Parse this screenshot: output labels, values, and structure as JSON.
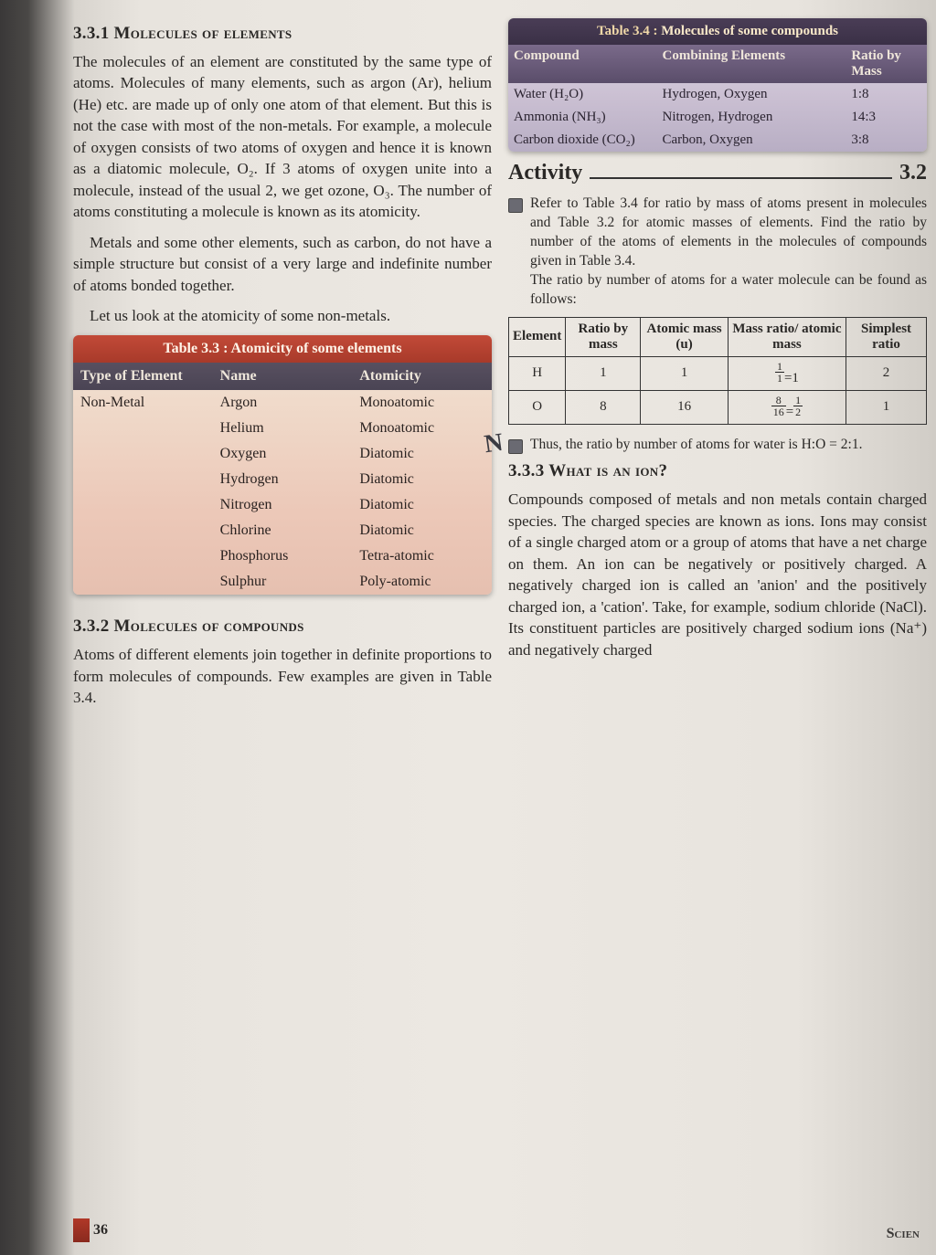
{
  "section_331_title": "3.3.1 Molecules of elements",
  "section_332_title": "3.3.2 Molecules of compounds",
  "section_333_title": "3.3.3 What is an ion?",
  "para1": "The molecules of an element are constituted by the same type of atoms. Molecules of many elements, such as argon (Ar), helium (He) etc. are made up of only one atom of that element. But this is not the case with most of the non-metals. For example, a molecule of oxygen consists of two atoms of oxygen and hence it is known as a diatomic molecule, O₂. If 3 atoms of oxygen unite into a molecule, instead of the usual 2, we get ozone, O₃. The number of atoms constituting a molecule is known as its atomicity.",
  "para2": "Metals and some other elements, such as carbon, do not have a simple structure but consist of a very large and indefinite number of atoms bonded together.",
  "para3": "Let us look at the atomicity of some non-metals.",
  "para_332": "Atoms of different elements join together in definite proportions to form molecules of compounds. Few examples are given in Table 3.4.",
  "activity_label": "Activity",
  "activity_num": "3.2",
  "activity_text": "Refer to Table 3.4 for ratio by mass of atoms present in molecules and Table 3.2 for atomic masses of elements. Find the ratio by number of the atoms of elements in the molecules of compounds given in Table 3.4.",
  "activity_text2": "The ratio by number of atoms for a water molecule can be found as follows:",
  "conclusion_text": "Thus, the ratio by number of atoms for water is H:O = 2:1.",
  "para_333": "Compounds composed of metals and non metals contain charged species. The charged species are known as ions. Ions may consist of a single charged atom or a group of atoms that have a net charge on them. An ion can be negatively or positively charged. A negatively charged ion is called an 'anion' and the positively charged ion, a 'cation'. Take, for example, sodium chloride (NaCl). Its constituent particles are positively charged sodium ions (Na⁺) and negatively charged",
  "page_number": "36",
  "footer_right": "Scien",
  "pencil": "N",
  "table33": {
    "title_a": "Table 3.3 :",
    "title_b": "Atomicity of some elements",
    "headers": [
      "Type of Element",
      "Name",
      "Atomicity"
    ],
    "rows": [
      [
        "Non-Metal",
        "Argon",
        "Monoatomic"
      ],
      [
        "",
        "Helium",
        "Monoatomic"
      ],
      [
        "",
        "Oxygen",
        "Diatomic"
      ],
      [
        "",
        "Hydrogen",
        "Diatomic"
      ],
      [
        "",
        "Nitrogen",
        "Diatomic"
      ],
      [
        "",
        "Chlorine",
        "Diatomic"
      ],
      [
        "",
        "Phosphorus",
        "Tetra-atomic"
      ],
      [
        "",
        "Sulphur",
        "Poly-atomic"
      ]
    ]
  },
  "table34": {
    "title_a": "Table 3.4 :",
    "title_b": "Molecules of some compounds",
    "headers": [
      "Compound",
      "Combining Elements",
      "Ratio by Mass"
    ],
    "rows": [
      [
        "Water (H₂O)",
        "Hydrogen, Oxygen",
        "1:8"
      ],
      [
        "Ammonia (NH₃)",
        "Nitrogen, Hydrogen",
        "14:3"
      ],
      [
        "Carbon dioxide (CO₂)",
        "Carbon, Oxygen",
        "3:8"
      ]
    ]
  },
  "calc": {
    "headers": [
      "Element",
      "Ratio by mass",
      "Atomic mass (u)",
      "Mass ratio/ atomic mass",
      "Simplest ratio"
    ],
    "rows": [
      {
        "el": "H",
        "rbm": "1",
        "am": "1",
        "frac_n": "1",
        "frac_d": "1",
        "eq": "=1",
        "sr": "2"
      },
      {
        "el": "O",
        "rbm": "8",
        "am": "16",
        "frac_n": "8",
        "frac_d": "16",
        "eq2_n": "1",
        "eq2_d": "2",
        "sr": "1"
      }
    ]
  }
}
